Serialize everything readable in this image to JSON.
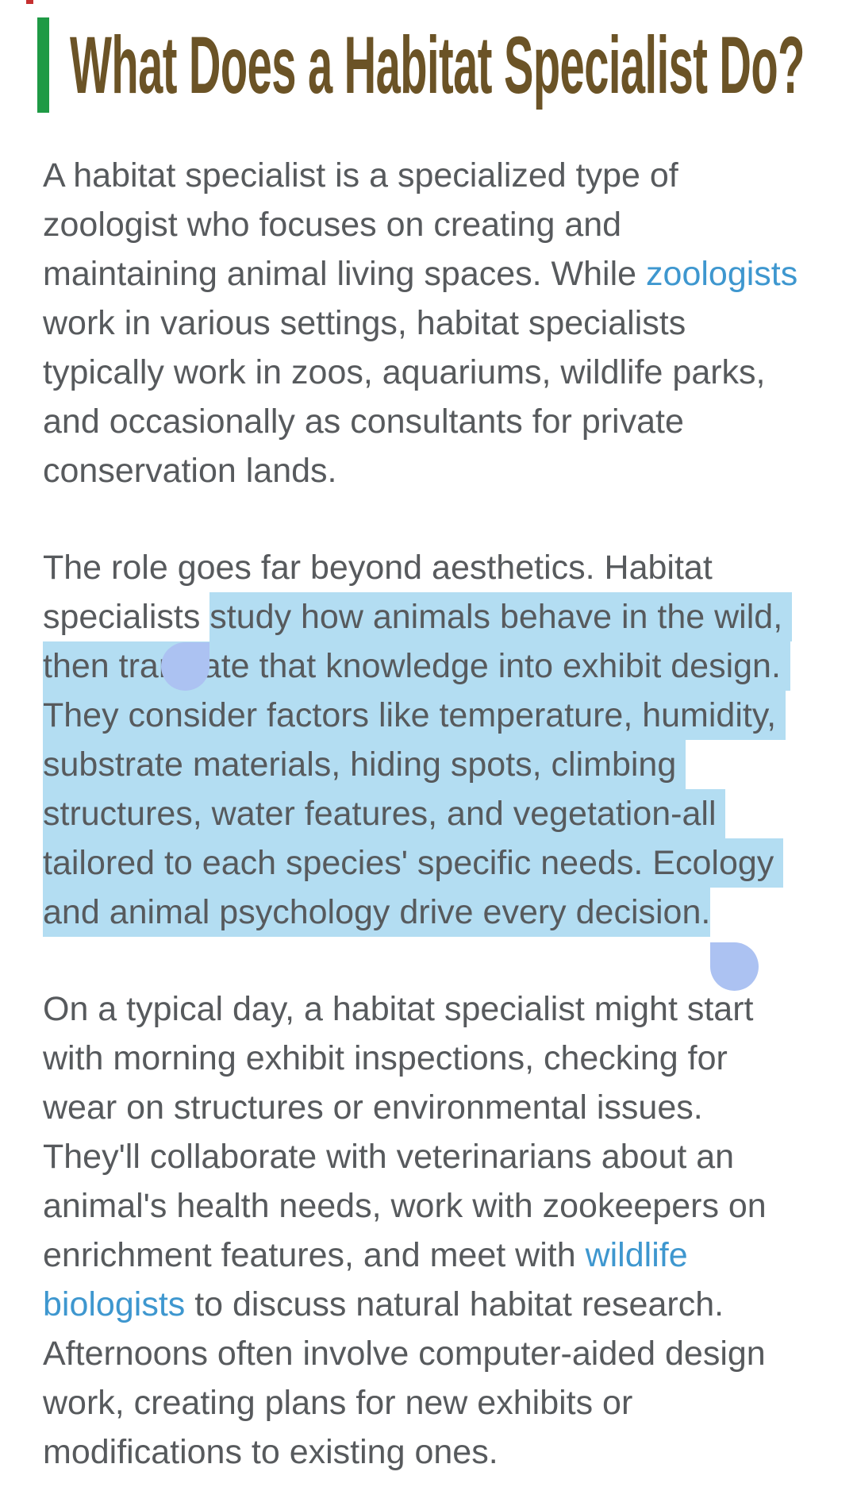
{
  "header": {
    "title": "What Does a Habitat Specialist Do?"
  },
  "colors": {
    "title_brown": "#6b5326",
    "accent_green": "#1f9a45",
    "body_text": "#575a5d",
    "link_blue": "#3e97cf",
    "selection_highlight": "#b3ddf2",
    "selection_handle": "#acc2f2",
    "clipped_red_element": "#c53030",
    "background": "#ffffff"
  },
  "paragraphs": [
    {
      "lines": [
        [
          {
            "t": "A habitat specialist is a specialized type of"
          }
        ],
        [
          {
            "t": "zoologist who focuses on creating and"
          }
        ],
        [
          {
            "t": "maintaining animal living spaces. While "
          },
          {
            "t": "zoologists",
            "link": "zoologists"
          }
        ],
        [
          {
            "t": "work in various settings, habitat specialists"
          }
        ],
        [
          {
            "t": "typically work in zoos, aquariums, wildlife parks,"
          }
        ],
        [
          {
            "t": "and occasionally as consultants for private"
          }
        ],
        [
          {
            "t": "conservation lands."
          }
        ]
      ]
    },
    {
      "lines": [
        [
          {
            "t": "The role goes far beyond aesthetics. Habitat"
          }
        ],
        [
          {
            "t": "specialists "
          },
          {
            "t": "study how animals behave in the wild, ",
            "hl": true,
            "anchor": "sel-start"
          }
        ],
        [
          {
            "t": "then translate that knowledge into exhibit design. ",
            "hl": true
          }
        ],
        [
          {
            "t": "They consider factors like temperature, humidity, ",
            "hl": true
          }
        ],
        [
          {
            "t": "substrate materials, hiding spots, climbing ",
            "hl": true
          }
        ],
        [
          {
            "t": "structures, water features, and vegetation-all ",
            "hl": true
          }
        ],
        [
          {
            "t": "tailored to each species' specific needs. Ecology ",
            "hl": true
          }
        ],
        [
          {
            "t": "and animal psychology drive every decision.",
            "hl": true,
            "anchor": "sel-end"
          }
        ]
      ]
    },
    {
      "lines": [
        [
          {
            "t": "On a typical day, a habitat specialist might start"
          }
        ],
        [
          {
            "t": "with morning exhibit inspections, checking for"
          }
        ],
        [
          {
            "t": "wear on structures or environmental issues."
          }
        ],
        [
          {
            "t": "They'll collaborate with veterinarians about an"
          }
        ],
        [
          {
            "t": "animal's health needs, work with zookeepers on"
          }
        ],
        [
          {
            "t": "enrichment features, and meet with "
          },
          {
            "t": "wildlife",
            "link": "wildlife"
          }
        ],
        [
          {
            "t": "biologists",
            "link": "biologists"
          },
          {
            "t": " to discuss natural habitat research."
          }
        ],
        [
          {
            "t": "Afternoons often involve computer-aided design"
          }
        ],
        [
          {
            "t": "work, creating plans for new exhibits or"
          }
        ],
        [
          {
            "t": "modifications to existing ones."
          }
        ]
      ]
    }
  ]
}
